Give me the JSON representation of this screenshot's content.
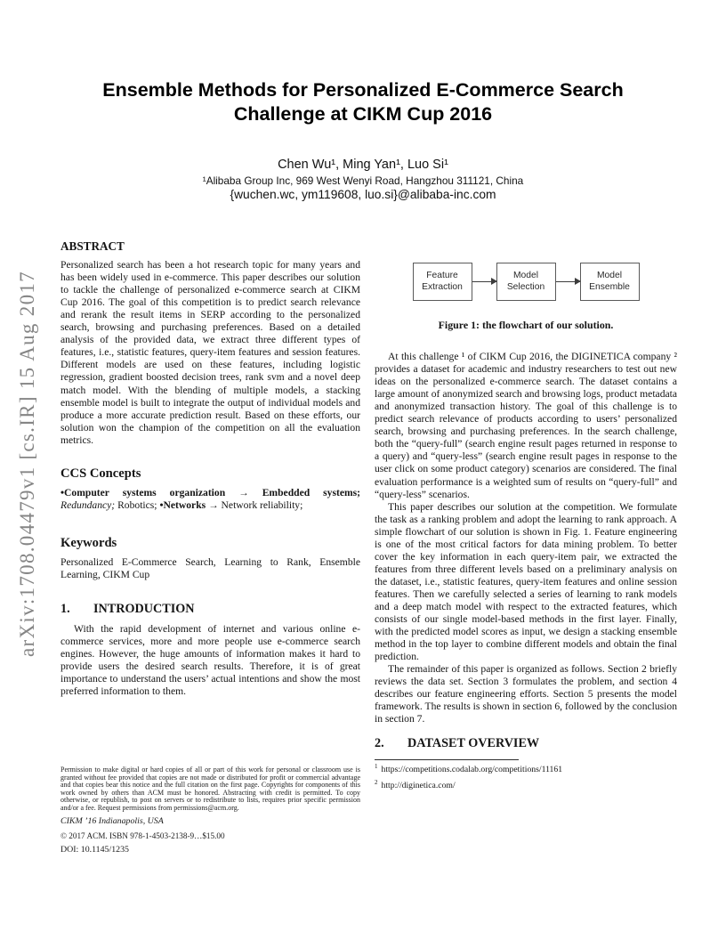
{
  "arxiv_banner": "arXiv:1708.04479v1  [cs.IR]  15 Aug 2017",
  "title": {
    "line1": "Ensemble Methods for Personalized E-Commerce Search",
    "line2": "Challenge at CIKM Cup 2016"
  },
  "authors": {
    "names": "Chen Wu¹, Ming Yan¹, Luo Si¹",
    "affiliation": "¹Alibaba Group Inc, 969 West Wenyi Road, Hangzhou 311121, China",
    "email": "{wuchen.wc, ym119608, luo.si}@alibaba-inc.com"
  },
  "abstract": {
    "heading": "ABSTRACT",
    "text": "Personalized search has been a hot research topic for many years and has been widely used in e-commerce. This paper describes our solution to tackle the challenge of personalized e-commerce search at CIKM Cup 2016. The goal of this competition is to predict search relevance and rerank the result items in SERP according to the personalized search, browsing and purchasing preferences. Based on a detailed analysis of the provided data, we extract three different types of features, i.e., statistic features, query-item features and session features. Different models are used on these features, including logistic regression, gradient boosted decision trees, rank svm and a novel deep match model. With the blending of multiple models, a stacking ensemble model is built to integrate the output of individual models and produce a more accurate prediction result. Based on these efforts, our solution won the champion of the competition on all the evaluation metrics."
  },
  "ccs": {
    "heading": "CCS Concepts",
    "seg_bold1": "•Computer systems organization",
    "seg_arrow1": " → ",
    "seg_bold2": "Embedded systems;",
    "seg_italic": "Redundancy;",
    "seg_plain1": "Robotics;",
    "seg_bold3": "•Networks",
    "seg_plain2": "→ Network reliability;"
  },
  "keywords": {
    "heading": "Keywords",
    "text": "Personalized E-Commerce Search, Learning to Rank, Ensemble Learning, CIKM Cup"
  },
  "introduction": {
    "number": "1.",
    "heading": "INTRODUCTION",
    "paragraph": "With the rapid development of internet and various online e-commerce services, more and more people use e-commerce search engines. However, the huge amounts of information makes it hard to provide users the desired search results. Therefore, it is of great importance to understand the users’ actual intentions and show the most preferred information to them."
  },
  "permission": {
    "text": "Permission to make digital or hard copies of all or part of this work for personal or classroom use is granted without fee provided that copies are not made or distributed for profit or commercial advantage and that copies bear this notice and the full citation on the first page. Copyrights for components of this work owned by others than ACM must be honored. Abstracting with credit is permitted. To copy otherwise, or republish, to post on servers or to redistribute to lists, requires prior specific permission and/or a fee. Request permissions from permissions@acm.org.",
    "conference": "CIKM ’16 Indianapolis, USA",
    "copyright": "© 2017 ACM. ISBN 978-1-4503-2138-9…$15.00",
    "doi": "DOI: 10.1145/1235"
  },
  "figure1": {
    "boxes": [
      {
        "label": "Feature Extraction"
      },
      {
        "label": "Model Selection"
      },
      {
        "label": "Model Ensemble"
      }
    ],
    "caption": "Figure 1: the flowchart of our solution."
  },
  "right_column": {
    "paragraph1": "At this challenge ¹ of CIKM Cup 2016, the DIGINETICA company ² provides a dataset for academic and industry researchers to test out new ideas on the personalized e-commerce search. The dataset contains a large amount of anonymized search and browsing logs, product metadata and anonymized transaction history. The goal of this challenge is to predict search relevance of products according to users’ personalized search, browsing and purchasing preferences. In the search challenge, both the “query-full” (search engine result pages returned in response to a query) and “query-less” (search engine result pages in response to the user click on some product category) scenarios are considered. The final evaluation performance is a weighted sum of results on “query-full” and “query-less” scenarios.",
    "paragraph2": "This paper describes our solution at the competition. We formulate the task as a ranking problem and adopt the learning to rank approach. A simple flowchart of our solution is shown in Fig. 1. Feature engineering is one of the most critical factors for data mining problem. To better cover the key information in each query-item pair, we extracted the features from three different levels based on a preliminary analysis on the dataset, i.e., statistic features, query-item features and online session features. Then we carefully selected a series of learning to rank models and a deep match model with respect to the extracted features, which consists of our single model-based methods in the first layer. Finally, with the predicted model scores as input, we design a stacking ensemble method in the top layer to combine different models and obtain the final prediction.",
    "paragraph3": "The remainder of this paper is organized as follows. Section 2 briefly reviews the data set. Section 3 formulates the problem, and section 4 describes our feature engineering efforts. Section 5 presents the model framework. The results is shown in section 6, followed by the conclusion in section 7."
  },
  "section2": {
    "number": "2.",
    "heading": "DATASET OVERVIEW"
  },
  "footnotes": [
    {
      "marker": "1",
      "text": "https://competitions.codalab.org/competitions/11161"
    },
    {
      "marker": "2",
      "text": "http://diginetica.com/"
    }
  ]
}
